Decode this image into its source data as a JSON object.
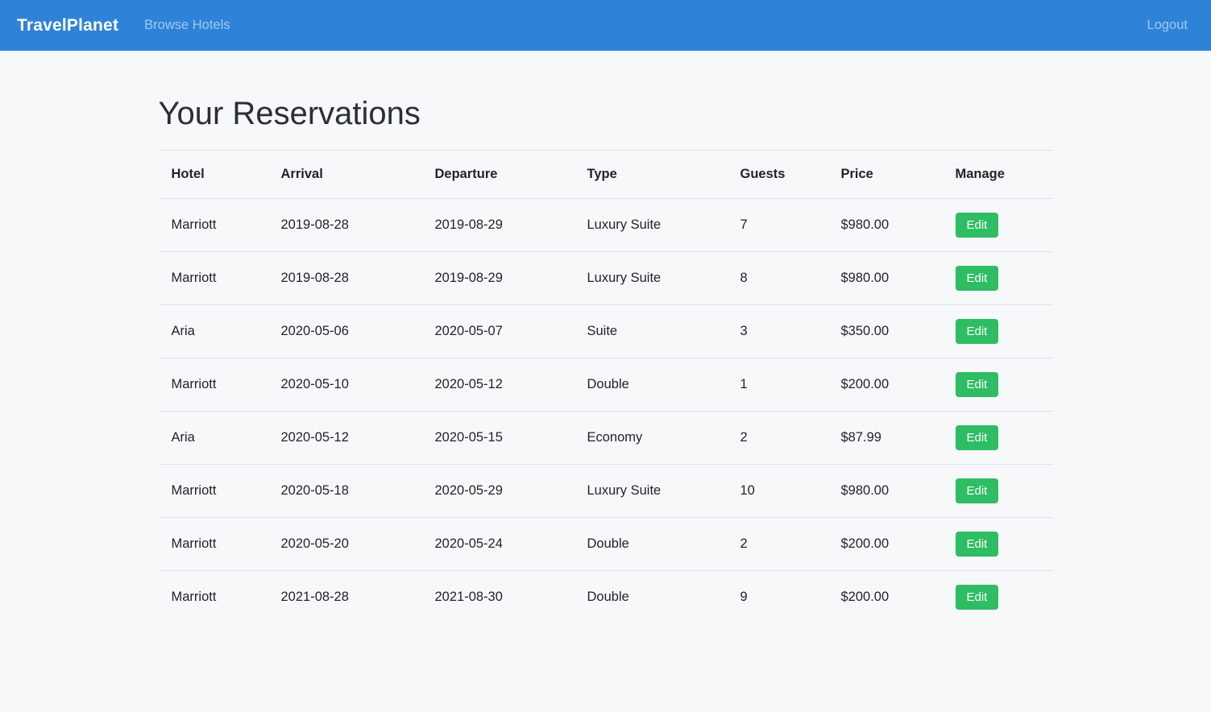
{
  "colors": {
    "navbar_bg": "#2e83d8",
    "edit_button_bg": "#2ebd63"
  },
  "navbar": {
    "brand": "TravelPlanet",
    "browse_hotels_label": "Browse Hotels",
    "logout_label": "Logout"
  },
  "page": {
    "title": "Your Reservations"
  },
  "table": {
    "headers": [
      "Hotel",
      "Arrival",
      "Departure",
      "Type",
      "Guests",
      "Price",
      "Manage"
    ],
    "edit_label": "Edit",
    "rows": [
      {
        "hotel": "Marriott",
        "arrival": "2019-08-28",
        "departure": "2019-08-29",
        "type": "Luxury Suite",
        "guests": "7",
        "price": "$980.00",
        "action": "Edit"
      },
      {
        "hotel": "Marriott",
        "arrival": "2019-08-28",
        "departure": "2019-08-29",
        "type": "Luxury Suite",
        "guests": "8",
        "price": "$980.00",
        "action": "Edit"
      },
      {
        "hotel": "Aria",
        "arrival": "2020-05-06",
        "departure": "2020-05-07",
        "type": "Suite",
        "guests": "3",
        "price": "$350.00",
        "action": "Edit"
      },
      {
        "hotel": "Marriott",
        "arrival": "2020-05-10",
        "departure": "2020-05-12",
        "type": "Double",
        "guests": "1",
        "price": "$200.00",
        "action": "Edit"
      },
      {
        "hotel": "Aria",
        "arrival": "2020-05-12",
        "departure": "2020-05-15",
        "type": "Economy",
        "guests": "2",
        "price": "$87.99",
        "action": "Edit"
      },
      {
        "hotel": "Marriott",
        "arrival": "2020-05-18",
        "departure": "2020-05-29",
        "type": "Luxury Suite",
        "guests": "10",
        "price": "$980.00",
        "action": "Edit"
      },
      {
        "hotel": "Marriott",
        "arrival": "2020-05-20",
        "departure": "2020-05-24",
        "type": "Double",
        "guests": "2",
        "price": "$200.00",
        "action": "Edit"
      },
      {
        "hotel": "Marriott",
        "arrival": "2021-08-28",
        "departure": "2021-08-30",
        "type": "Double",
        "guests": "9",
        "price": "$200.00",
        "action": "Edit"
      }
    ]
  }
}
